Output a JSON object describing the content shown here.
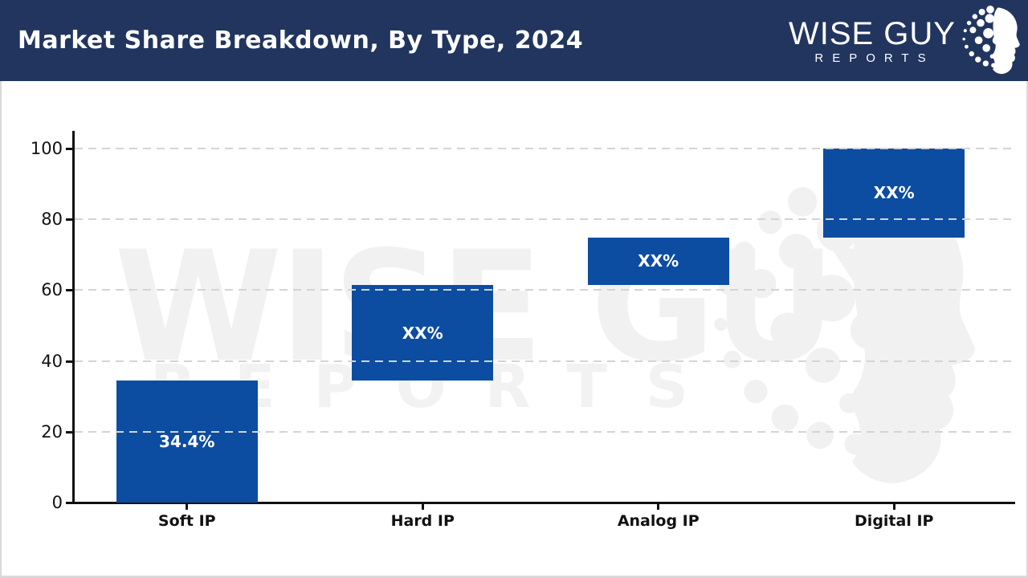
{
  "header": {
    "title": "Market Share Breakdown, By Type, 2024",
    "background": "#21355f",
    "logo": {
      "primary": "WISE GUY",
      "secondary": "REPORTS"
    }
  },
  "watermark": {
    "primary": "WISE GUY",
    "secondary": "REPORTS"
  },
  "chart_data": {
    "type": "bar",
    "subtype": "waterfall",
    "title": "Market Share Breakdown, By Type, 2024",
    "xlabel": "",
    "ylabel": "",
    "ylim": [
      0,
      105
    ],
    "yticks": [
      0,
      20,
      40,
      60,
      80,
      100
    ],
    "grid": "horizontal-dashed",
    "legend": "none",
    "bar_color": "#0c4da2",
    "label_color": "#ffffff",
    "categories": [
      "Soft IP",
      "Hard IP",
      "Analog IP",
      "Digital IP"
    ],
    "bars": [
      {
        "category": "Soft IP",
        "start": 0,
        "end": 34.4,
        "label": "34.4%"
      },
      {
        "category": "Hard IP",
        "start": 34.4,
        "end": 61.4,
        "label": "XX%"
      },
      {
        "category": "Analog IP",
        "start": 61.4,
        "end": 74.9,
        "label": "XX%"
      },
      {
        "category": "Digital IP",
        "start": 74.9,
        "end": 100,
        "label": "XX%"
      }
    ]
  }
}
